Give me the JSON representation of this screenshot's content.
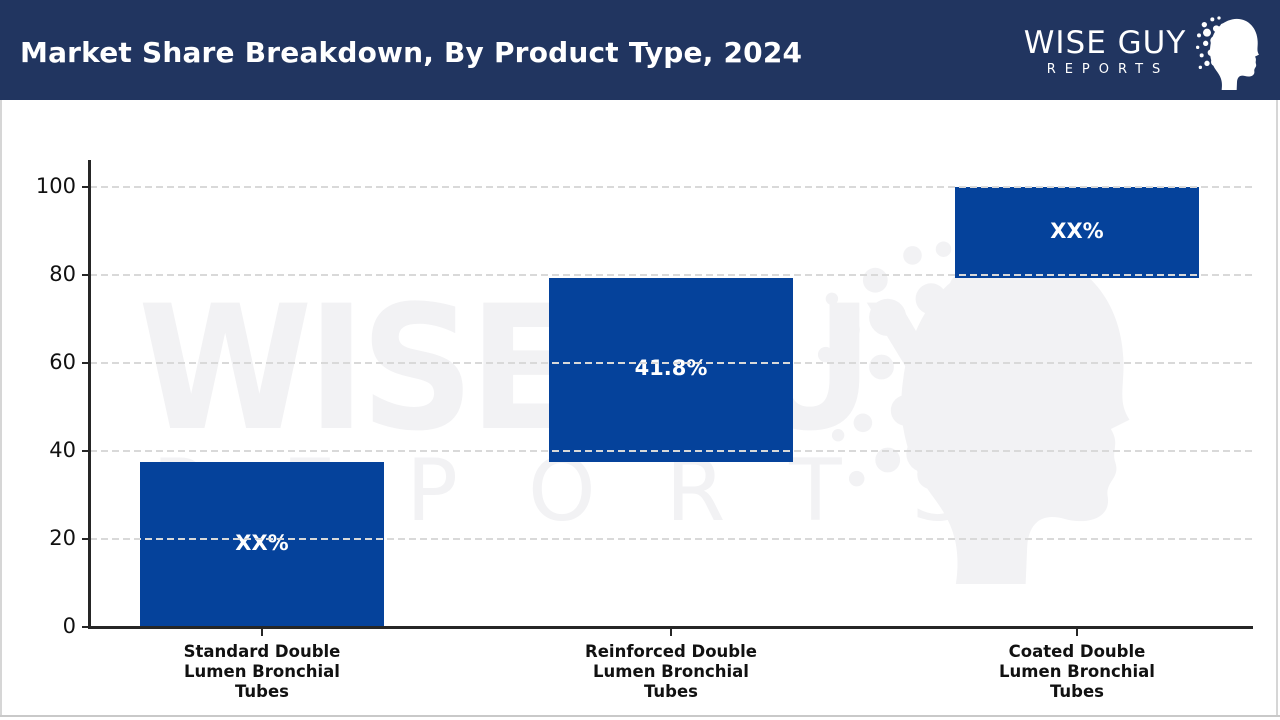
{
  "header": {
    "title": "Market Share Breakdown, By Product Type, 2024",
    "logo_line1": "WISE GUY",
    "logo_line2": "REPORTS"
  },
  "watermark": {
    "line1": "WISE GUY",
    "line2": "REPORTS"
  },
  "chart_data": {
    "type": "bar",
    "subtype": "waterfall",
    "title": "Market Share Breakdown, By Product Type, 2024",
    "categories": [
      "Standard Double\nLumen Bronchial\nTubes",
      "Reinforced Double\nLumen Bronchial\nTubes",
      "Coated Double\nLumen Bronchial\nTubes"
    ],
    "segments": [
      {
        "start": 0,
        "end": 37.5,
        "value": 37.5,
        "label": "XX%"
      },
      {
        "start": 37.5,
        "end": 79.3,
        "value": 41.8,
        "label": "41.8%"
      },
      {
        "start": 79.3,
        "end": 100,
        "value": 20.7,
        "label": "XX%"
      }
    ],
    "yticks": [
      0,
      20,
      40,
      60,
      80,
      100
    ],
    "ylim": [
      0,
      106
    ],
    "grid": "horizontal-dashed",
    "legend": null,
    "bar_color": "#05429B",
    "value_label_color": "#ffffff"
  },
  "colors": {
    "header_bg": "#213560",
    "bar_blue": "#05429B",
    "grid_gray": "#d9d9d9",
    "axis_dark": "#262626",
    "watermark_gray": "#f2f2f4",
    "frame_gray": "#c9c9c9"
  }
}
